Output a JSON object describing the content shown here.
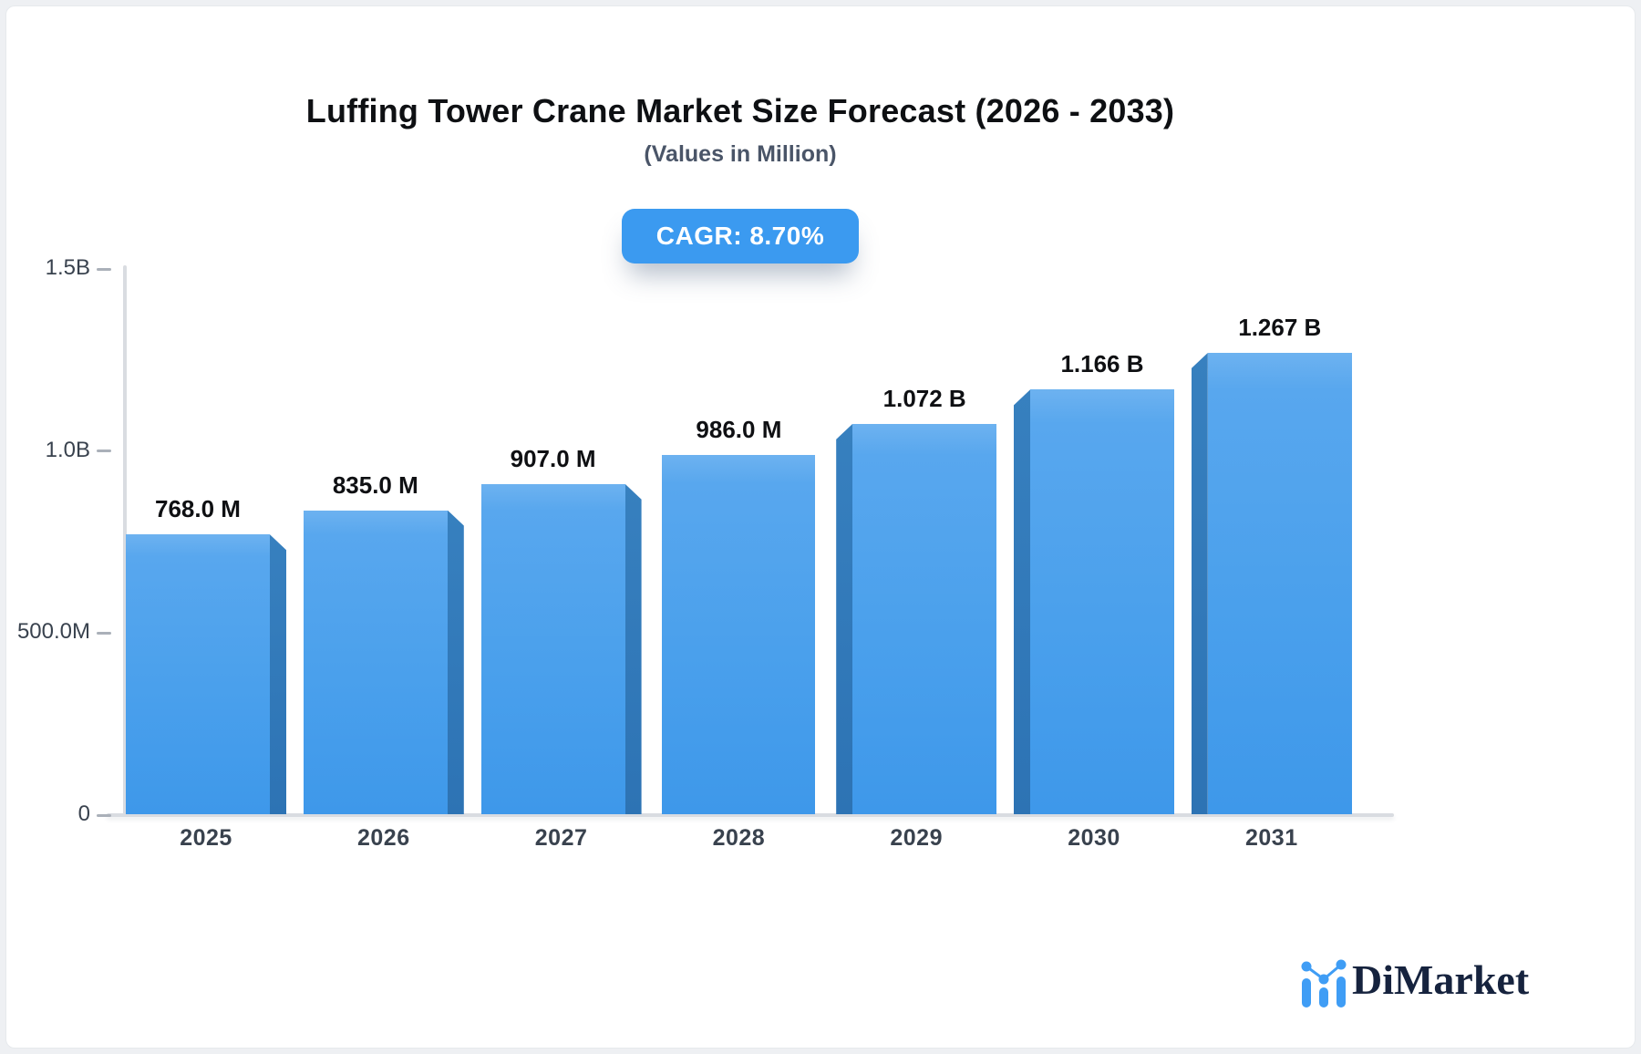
{
  "header": {
    "title": "Luffing Tower Crane Market Size Forecast (2026 - 2033)",
    "subtitle": "(Values in Million)",
    "badge_label": "CAGR: 8.70%"
  },
  "brand": {
    "name": "DiMarket",
    "icon": "mini-bar-chart-logo-icon"
  },
  "colors": {
    "accent": "#3b9af0",
    "bar_face_top": "#6db2f0",
    "bar_face_bottom": "#3e98ea",
    "bar_side": "#2f77b8",
    "axis_line": "#d9dce1",
    "tick_text": "#39424e",
    "logo_navy": "#16233e"
  },
  "chart_data": {
    "type": "bar",
    "categories": [
      "2025",
      "2026",
      "2027",
      "2028",
      "2029",
      "2030",
      "2031"
    ],
    "values": [
      768,
      835,
      907,
      986,
      1072,
      1166,
      1267
    ],
    "value_labels": [
      "768.0 M",
      "835.0 M",
      "907.0 M",
      "986.0 M",
      "1.072 B",
      "1.166 B",
      "1.267 B"
    ],
    "unit": "USD Million",
    "title": "Luffing Tower Crane Market Size Forecast (2026 - 2033)",
    "xlabel": "",
    "ylabel": "",
    "ylim": [
      0,
      1500
    ],
    "yticks": [
      {
        "label": "1.5B",
        "value": 1500
      },
      {
        "label": "1.0B",
        "value": 1000
      },
      {
        "label": "500.0M",
        "value": 500
      },
      {
        "label": "0",
        "value": 0
      }
    ],
    "grid": false,
    "legend": "none",
    "bar_style": "pseudo-3d-bevel"
  }
}
